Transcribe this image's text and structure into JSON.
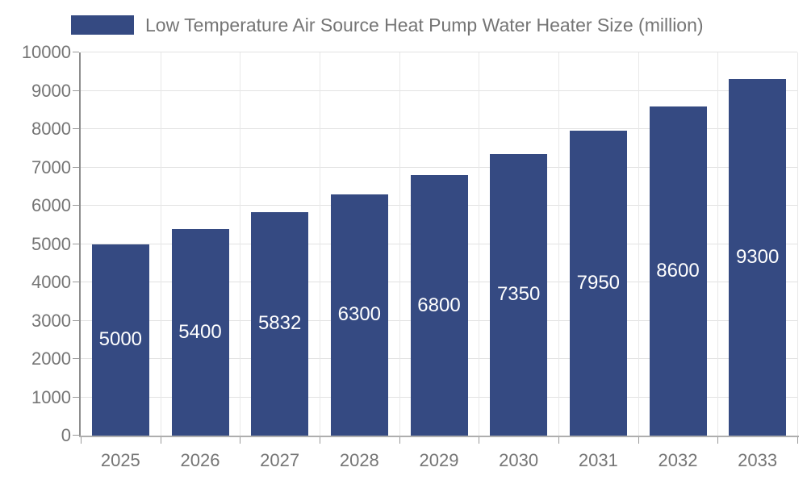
{
  "chart_data": {
    "type": "bar",
    "title": "Low Temperature Air Source Heat Pump Water Heater Size (million)",
    "categories": [
      "2025",
      "2026",
      "2027",
      "2028",
      "2029",
      "2030",
      "2031",
      "2032",
      "2033"
    ],
    "values": [
      5000,
      5400,
      5832,
      6300,
      6800,
      7350,
      7950,
      8600,
      9300
    ],
    "xlabel": "",
    "ylabel": "",
    "ylim": [
      0,
      10000
    ],
    "ytick_interval": 1000,
    "ytick_labels": [
      "0",
      "1000",
      "2000",
      "3000",
      "4000",
      "5000",
      "6000",
      "7000",
      "8000",
      "9000",
      "10000"
    ],
    "grid": {
      "horizontal": true,
      "vertical": true
    },
    "legend": {
      "position": "top-left"
    },
    "colors": {
      "bar": "#354a82",
      "bar_label": "#ffffff",
      "axis": "#9a9a9a",
      "tick_text": "#757575",
      "grid": "#e2e2e2",
      "background": "#ffffff"
    }
  }
}
